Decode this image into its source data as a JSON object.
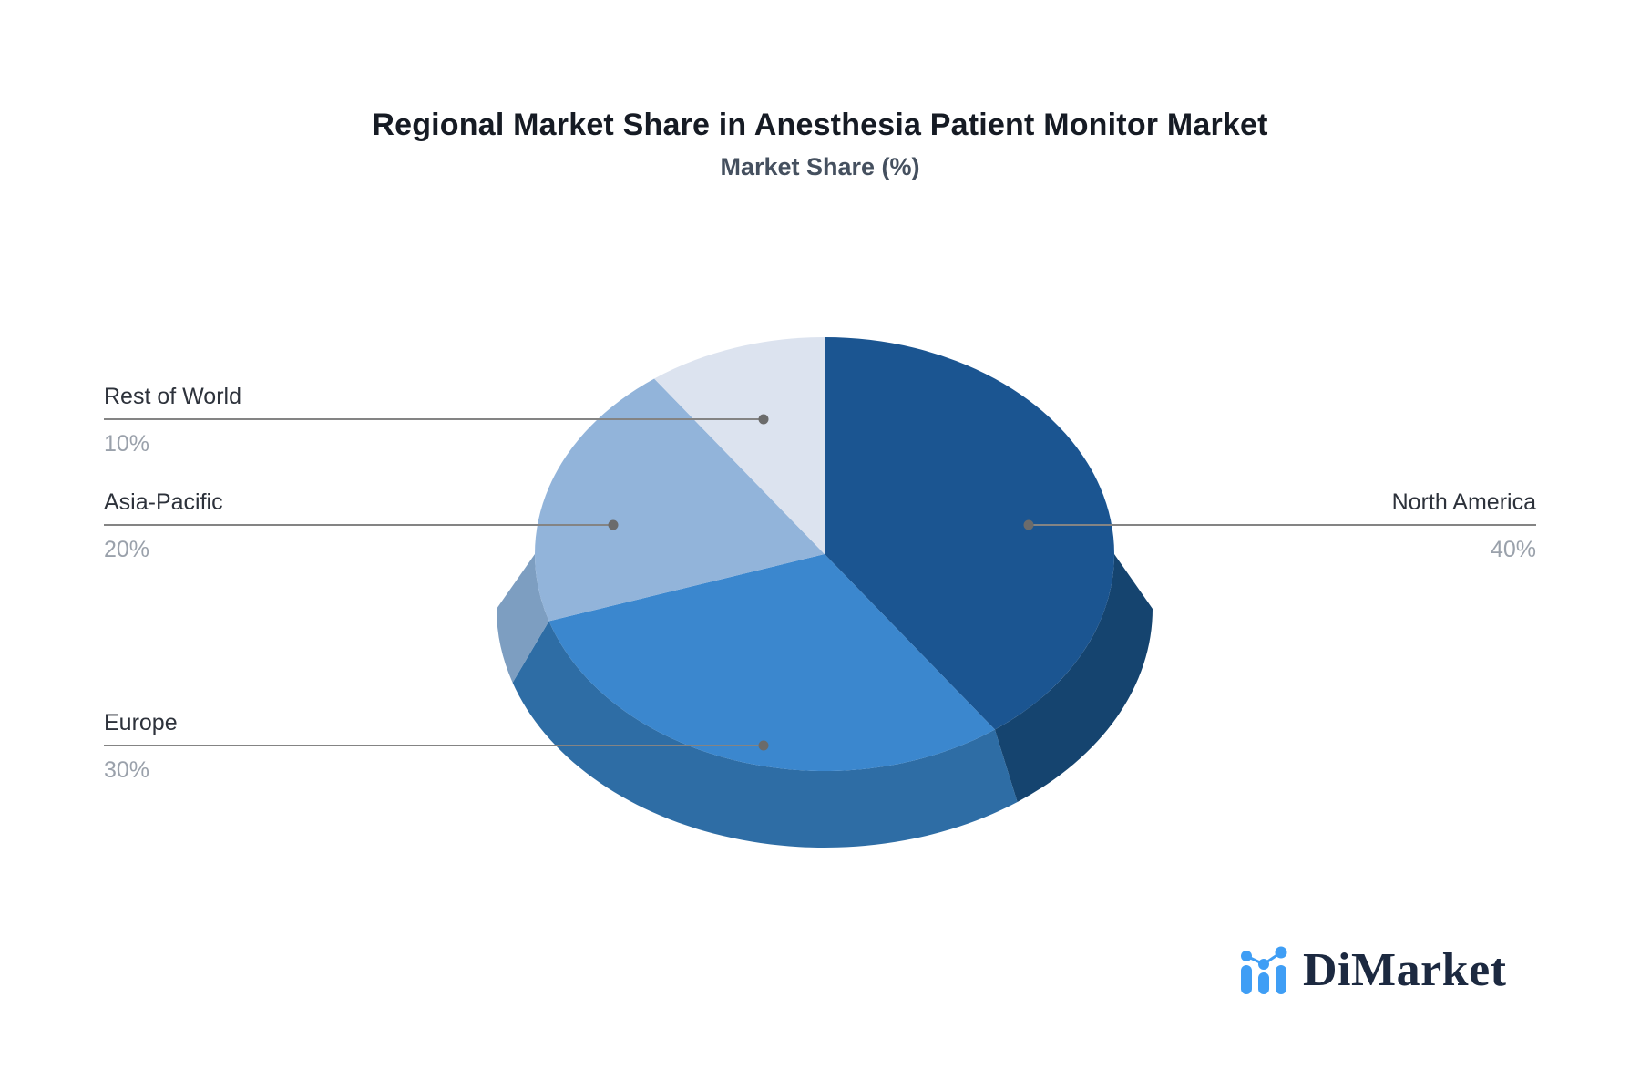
{
  "chart_data": {
    "type": "pie",
    "style": "3d",
    "title": "Regional Market Share in Anesthesia Patient Monitor Market",
    "subtitle": "Market Share (%)",
    "unit": "%",
    "start_angle_deg": 0,
    "direction": "clockwise",
    "legend_position": "callout-labels",
    "slices": [
      {
        "label": "North America",
        "value": 40,
        "display": "40%",
        "color": "#1b5591",
        "shade": "#15446f"
      },
      {
        "label": "Europe",
        "value": 30,
        "display": "30%",
        "color": "#3b87ce",
        "shade": "#2e6da5"
      },
      {
        "label": "Asia-Pacific",
        "value": 20,
        "display": "20%",
        "color": "#92b4da",
        "shade": "#7d9ec1"
      },
      {
        "label": "Rest of World",
        "value": 10,
        "display": "10%",
        "color": "#dce3ef",
        "shade": "#c3ccdb"
      }
    ]
  },
  "branding": {
    "name": "DiMarket",
    "icon": "bar-line-chart-icon",
    "icon_color": "#3f9ef5",
    "text_color": "#1c2940"
  },
  "colors": {
    "background": "#ffffff",
    "title_text": "#161b24",
    "subtitle_text": "#45505f",
    "label_text": "#2d323b",
    "value_text": "#9aa1ab",
    "callout_line": "#848484",
    "callout_dot": "#6b6b6b"
  }
}
